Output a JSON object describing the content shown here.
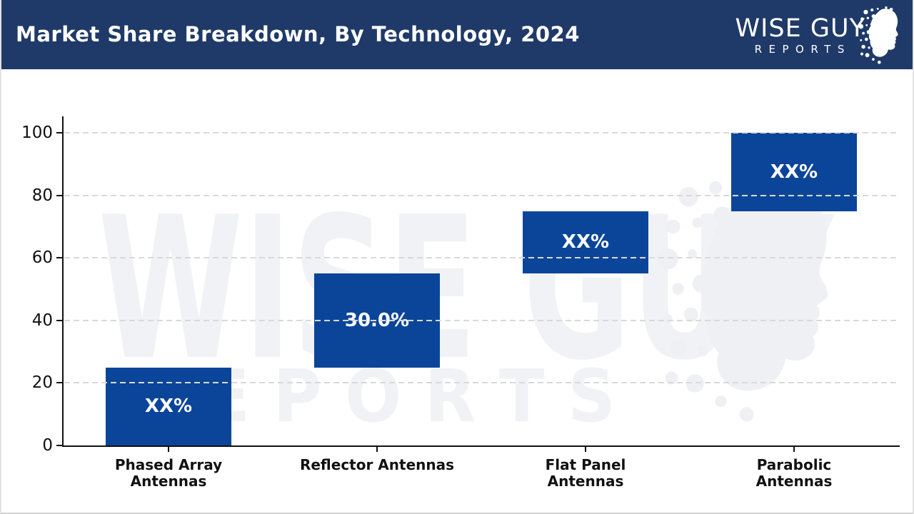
{
  "header": {
    "title": "Market Share Breakdown, By Technology, 2024",
    "logo": {
      "wordmark": "WISE GUY",
      "subtitle": "REPORTS"
    }
  },
  "watermark": {
    "line1": "WISE GUY",
    "line2": "R E P O R T S"
  },
  "chart_data": {
    "type": "bar",
    "subtype": "waterfall",
    "title": "Market Share Breakdown, By Technology, 2024",
    "categories": [
      "Phased Array Antennas",
      "Reflector Antennas",
      "Flat Panel Antennas",
      "Parabolic Antennas"
    ],
    "x_tick_display": [
      "Phased Array\nAntennas",
      "Reflector Antennas",
      "Flat Panel\nAntennas",
      "Parabolic Antennas"
    ],
    "values": [
      25,
      30,
      20,
      25
    ],
    "segments": [
      {
        "category": "Phased Array Antennas",
        "start": 0,
        "end": 25,
        "label": "XX%"
      },
      {
        "category": "Reflector Antennas",
        "start": 25,
        "end": 55,
        "label": "30.0%"
      },
      {
        "category": "Flat Panel Antennas",
        "start": 55,
        "end": 75,
        "label": "XX%"
      },
      {
        "category": "Parabolic Antennas",
        "start": 75,
        "end": 100,
        "label": "XX%"
      }
    ],
    "xlabel": "",
    "ylabel": "",
    "ylim": [
      0,
      100
    ],
    "yticks": [
      0,
      20,
      40,
      60,
      80,
      100
    ],
    "grid": "horizontal-dashed",
    "legend": "none",
    "bar_width_fraction": 0.6,
    "colors": {
      "bar": "#0b4599",
      "header_bg": "#1f3a68",
      "gridline": "#d9d9d9",
      "axis": "#111111",
      "watermark": "#f0f2f5",
      "label_on_bar": "#ffffff"
    }
  }
}
